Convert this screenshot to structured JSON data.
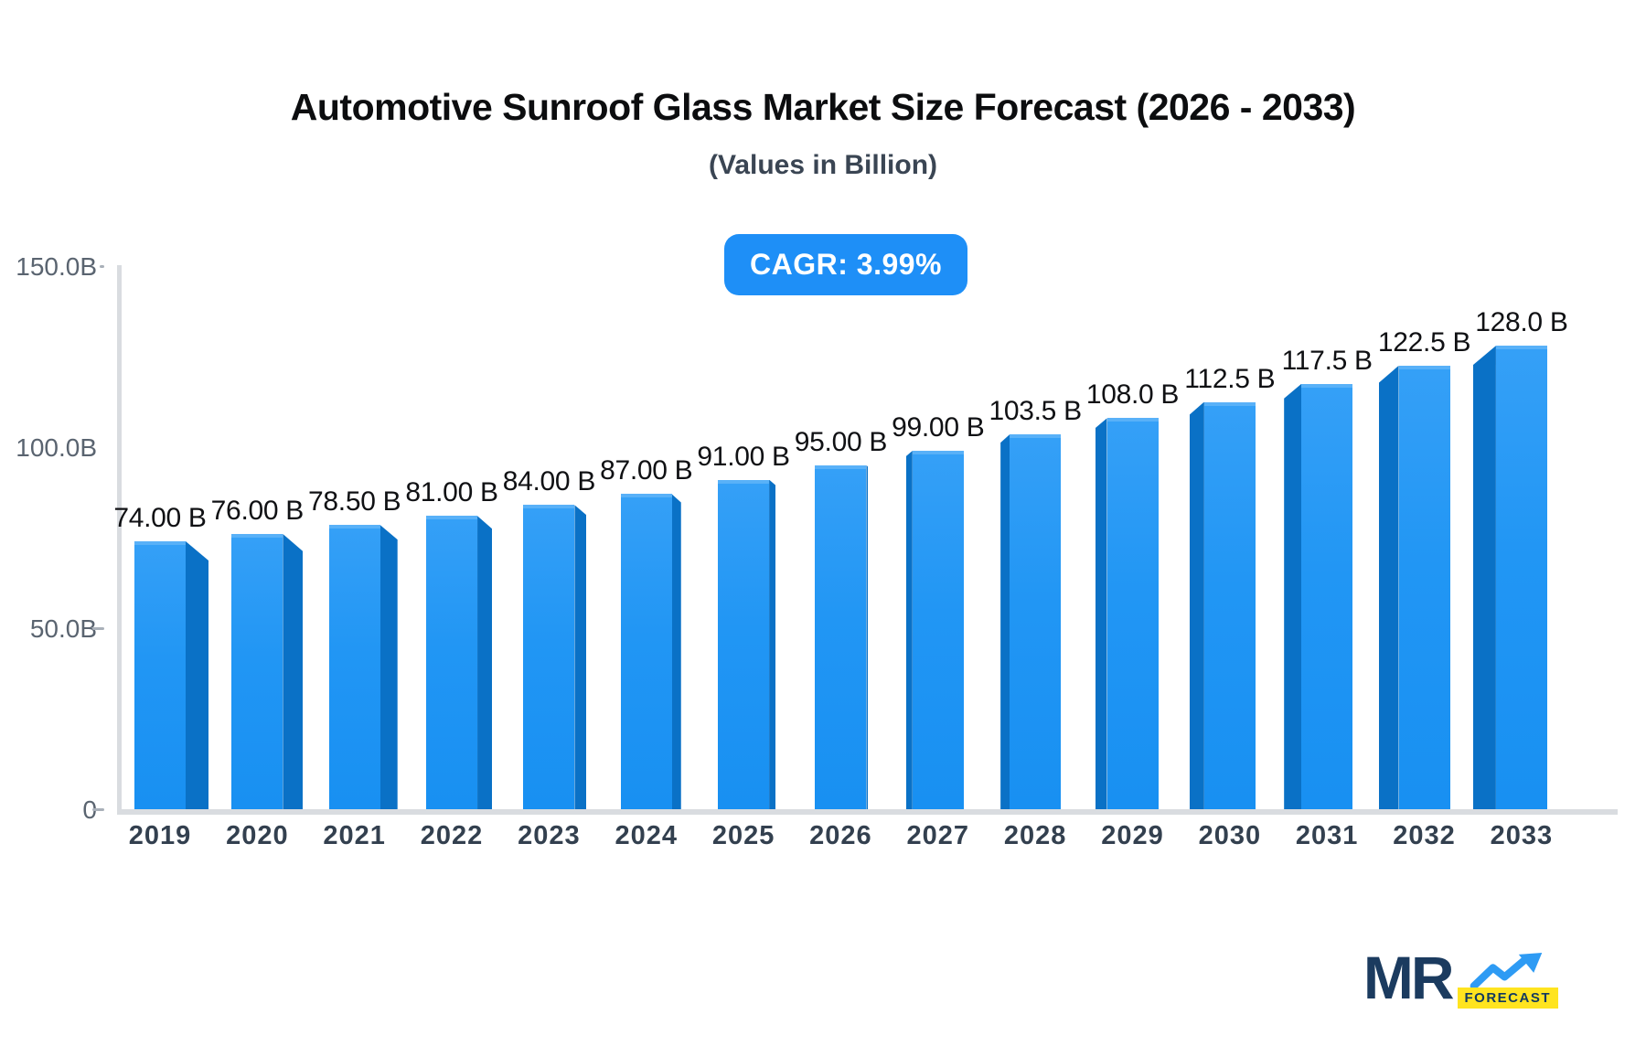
{
  "chart": {
    "title": "Automotive Sunroof Glass Market Size Forecast (2026 - 2033)",
    "subtitle": "(Values in Billion)",
    "badge_label": "CAGR: 3.99%"
  },
  "chart_data": {
    "type": "bar",
    "title": "Automotive Sunroof Glass Market Size Forecast (2026 - 2033)",
    "subtitle": "(Values in Billion)",
    "xlabel": "",
    "ylabel": "",
    "ylim": [
      0,
      150
    ],
    "grid": false,
    "categories": [
      "2019",
      "2020",
      "2021",
      "2022",
      "2023",
      "2024",
      "2025",
      "2026",
      "2027",
      "2028",
      "2029",
      "2030",
      "2031",
      "2032",
      "2033"
    ],
    "values": [
      74.0,
      76.0,
      78.5,
      81.0,
      84.0,
      87.0,
      91.0,
      95.0,
      99.0,
      103.5,
      108.0,
      112.5,
      117.5,
      122.5,
      128.0
    ],
    "value_labels": [
      "74.00 B",
      "76.00 B",
      "78.50 B",
      "81.00 B",
      "84.00 B",
      "87.00 B",
      "91.00 B",
      "95.00 B",
      "99.00 B",
      "103.5 B",
      "108.0 B",
      "112.5 B",
      "117.5 B",
      "122.5 B",
      "128.0 B"
    ],
    "y_ticks": [
      {
        "label": "150.0B",
        "value": 150
      },
      {
        "label": "100.0B",
        "value": 100
      },
      {
        "label": "50.0B",
        "value": 50
      },
      {
        "label": "0",
        "value": 0
      }
    ]
  },
  "colors": {
    "bar_face_top": "#35a0f7",
    "bar_face_bottom": "#1890f2",
    "bar_side": "#0a71c6",
    "badge_bg": "#1e8ff7",
    "badge_text": "#ffffff",
    "axis": "#d9dce0",
    "y_tick_text": "#5a6470",
    "x_tick_text": "#33404f",
    "value_label_text": "#101114",
    "title_text": "#0c0d0f",
    "subtitle_text": "#3a4553",
    "logo_navy": "#1b3b5f",
    "logo_yellow": "#ffe41f",
    "logo_arrow_blue": "#2e9bf4"
  },
  "logo": {
    "text": "MR",
    "sub": "FORECAST"
  }
}
